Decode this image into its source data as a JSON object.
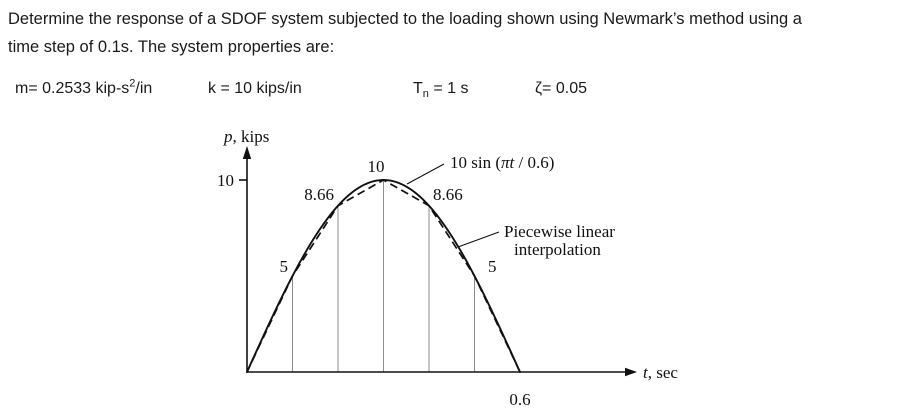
{
  "problem": {
    "line1": "Determine the response of a SDOF system subjected to the loading shown using Newmark’s method using a",
    "line2": "time step of 0.1s. The system properties are:"
  },
  "properties": {
    "mass_prefix": "m= 0.2533 kip-s",
    "mass_sup": "2",
    "mass_suffix": "/in",
    "stiffness": "k = 10 kips/in",
    "period_prefix": "T",
    "period_sub": "n",
    "period_suffix": " = 1 s",
    "damping": "ζ= 0.05"
  },
  "figure": {
    "y_axis_symbol": "p",
    "y_axis_units": ", kips",
    "y_tick": "10",
    "x_axis_symbol": "t",
    "x_axis_units": ", sec",
    "x_end_tick": "0.6",
    "curve_label_prefix": "10 sin (",
    "curve_label_italic": "πt",
    "curve_label_suffix": " / 0.6)",
    "interp_label_line1": "Piecewise linear",
    "interp_label_line2": "interpolation",
    "point_labels": [
      "5",
      "8.66",
      "10",
      "8.66",
      "5"
    ]
  },
  "chart_data": {
    "type": "line",
    "title": "",
    "xlabel": "t, sec",
    "ylabel": "p, kips",
    "xlim": [
      0,
      0.75
    ],
    "ylim": [
      0,
      11.5
    ],
    "x_tick_labels": [
      "0.6"
    ],
    "y_tick_labels": [
      "10"
    ],
    "grid": "vertical-stems-at-sample-points",
    "series": [
      {
        "name": "10 sin (πt / 0.6)",
        "style": "solid",
        "amplitude": 10,
        "duration": 0.6
      },
      {
        "name": "Piecewise linear interpolation",
        "style": "dashed",
        "x": [
          0,
          0.1,
          0.2,
          0.3,
          0.4,
          0.5,
          0.6
        ],
        "y": [
          0,
          5,
          8.66,
          10,
          8.66,
          5,
          0
        ]
      }
    ]
  }
}
